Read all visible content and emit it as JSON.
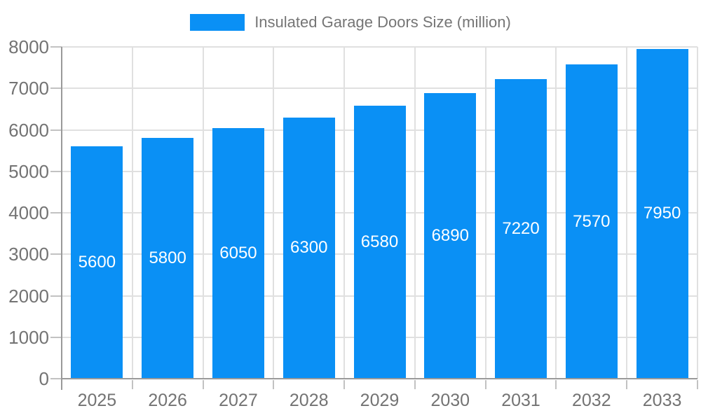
{
  "legend": {
    "label": "Insulated Garage Doors Size (million)"
  },
  "chart_data": {
    "type": "bar",
    "title": "Insulated Garage Doors Size (million)",
    "series_name": "Insulated Garage Doors Size (million)",
    "categories": [
      "2025",
      "2026",
      "2027",
      "2028",
      "2029",
      "2030",
      "2031",
      "2032",
      "2033"
    ],
    "values": [
      5600,
      5800,
      6050,
      6300,
      6580,
      6890,
      7220,
      7570,
      7950
    ],
    "value_labels": [
      "5600",
      "5800",
      "6050",
      "6300",
      "6580",
      "6890",
      "7220",
      "7570",
      "7950"
    ],
    "xlabel": "",
    "ylabel": "",
    "ylim": [
      0,
      8000
    ],
    "y_ticks": [
      0,
      1000,
      2000,
      3000,
      4000,
      5000,
      6000,
      7000,
      8000
    ],
    "grid": true,
    "legend_position": "top",
    "value_label_position": "inside-center",
    "colors": {
      "bar": "#0a90f5",
      "value_label": "#ffffff",
      "axis_text": "#737373",
      "gridline": "#e0e0e0",
      "tick": "#c2c2c2",
      "axis_line": "#9a9a9a",
      "background": "#ffffff"
    }
  }
}
